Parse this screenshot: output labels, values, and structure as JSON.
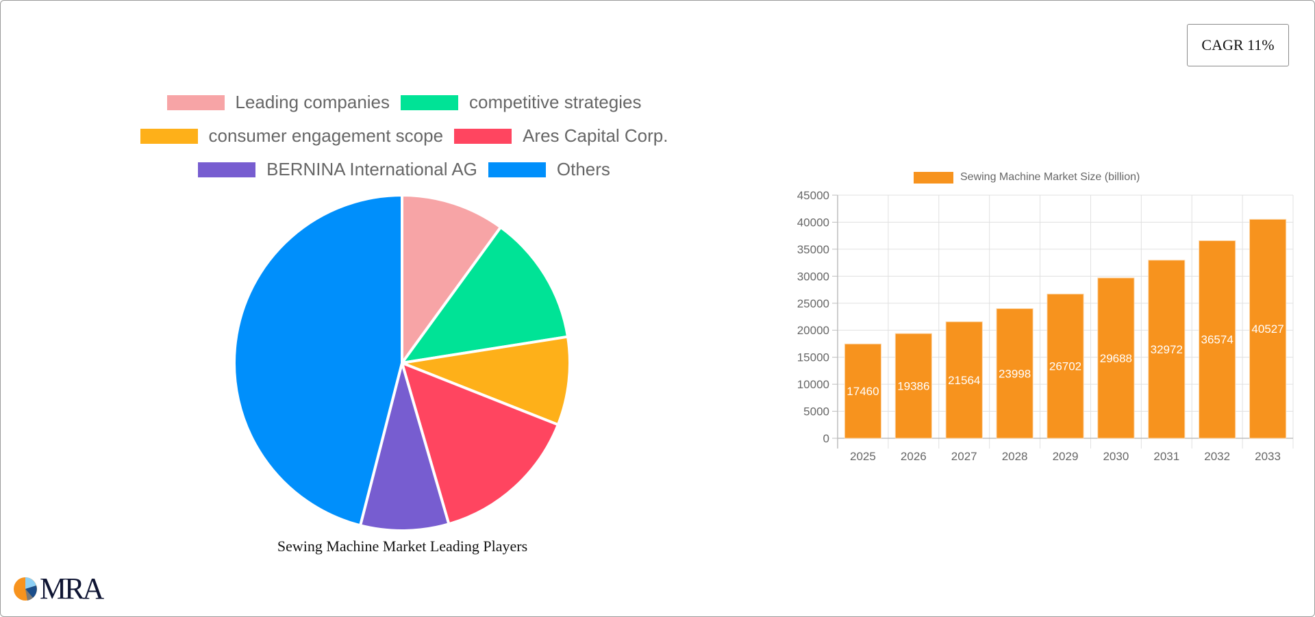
{
  "cagr_label": "CAGR 11%",
  "pie": {
    "title": "Sewing Machine Market Leading Players",
    "legend": [
      {
        "label": "Leading companies",
        "color": "#f7a4a6"
      },
      {
        "label": "competitive strategies",
        "color": "#00e396"
      },
      {
        "label": "consumer engagement scope",
        "color": "#feb019"
      },
      {
        "label": "Ares Capital Corp.",
        "color": "#ff4560"
      },
      {
        "label": "BERNINA International AG",
        "color": "#775dd0"
      },
      {
        "label": "Others",
        "color": "#008ffb"
      }
    ]
  },
  "bar": {
    "legend_label": "Sewing Machine Market Size (billion)",
    "color": "#f7931e"
  },
  "logo": {
    "text": "MRA"
  },
  "chart_data": [
    {
      "type": "pie",
      "title": "Sewing Machine Market Leading Players",
      "categories": [
        "Leading companies",
        "competitive strategies",
        "consumer engagement scope",
        "Ares Capital Corp.",
        "BERNINA International AG",
        "Others"
      ],
      "values": [
        10,
        12.5,
        8.5,
        14.5,
        8.5,
        46
      ],
      "colors": [
        "#f7a4a6",
        "#00e396",
        "#feb019",
        "#ff4560",
        "#775dd0",
        "#008ffb"
      ],
      "legend_position": "top"
    },
    {
      "type": "bar",
      "title": "",
      "series": [
        {
          "name": "Sewing Machine Market Size (billion)",
          "values": [
            17460,
            19386,
            21564,
            23998,
            26702,
            29688,
            32972,
            36574,
            40527
          ]
        }
      ],
      "categories": [
        "2025",
        "2026",
        "2027",
        "2028",
        "2029",
        "2030",
        "2031",
        "2032",
        "2033"
      ],
      "xlabel": "",
      "ylabel": "",
      "ylim": [
        0,
        45000
      ],
      "yticks": [
        0,
        5000,
        10000,
        15000,
        20000,
        25000,
        30000,
        35000,
        40000,
        45000
      ],
      "grid": true,
      "legend_position": "top",
      "data_labels": true
    }
  ]
}
